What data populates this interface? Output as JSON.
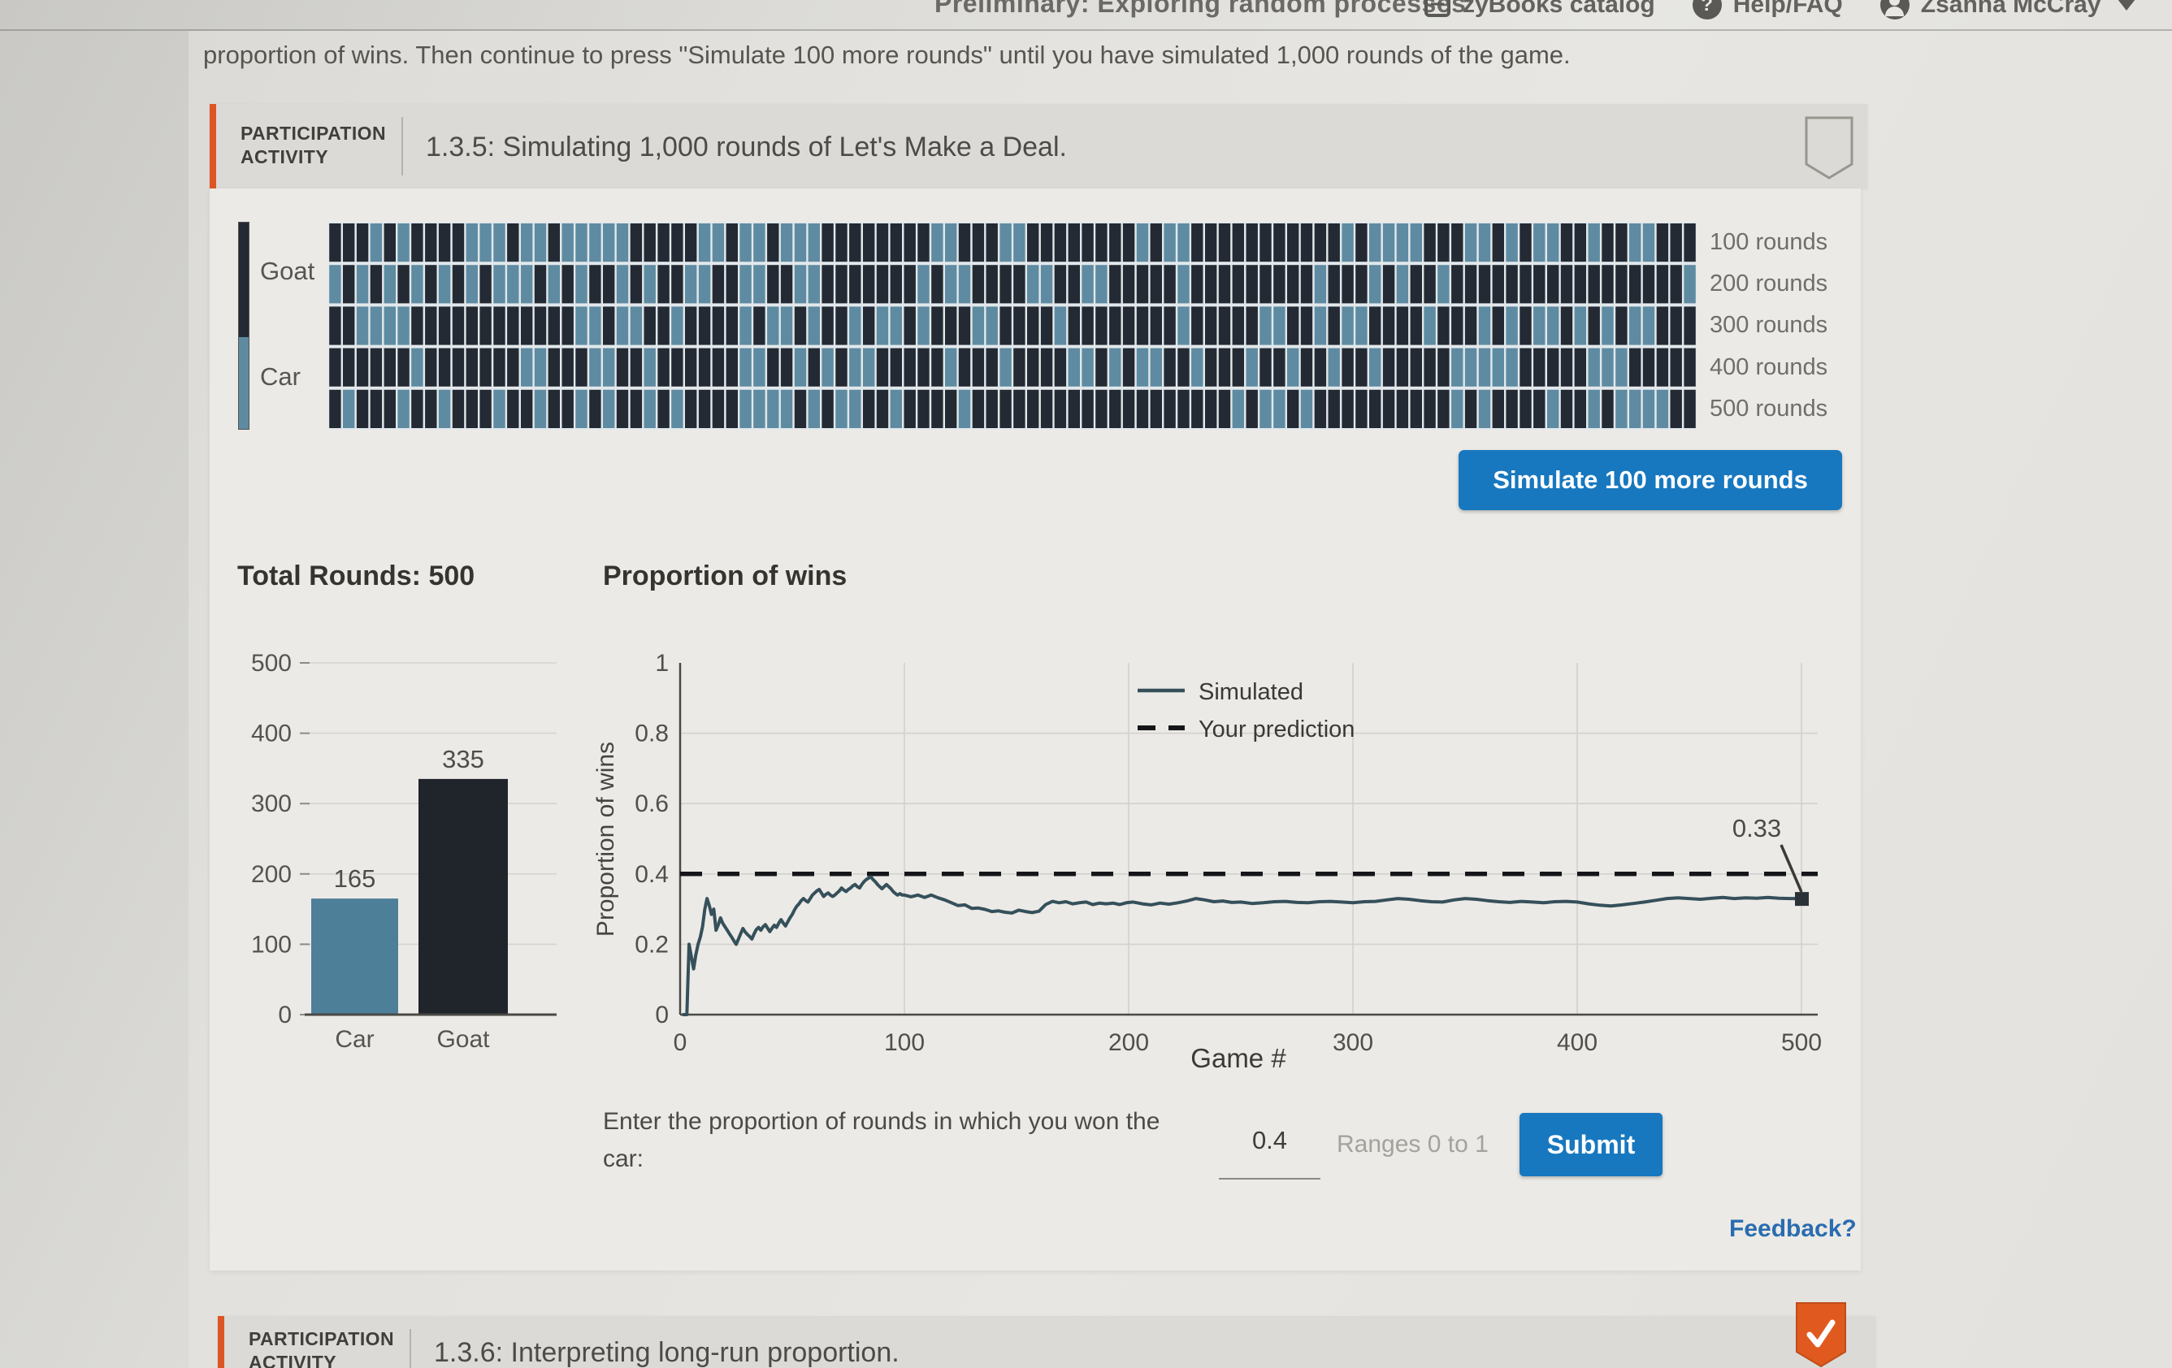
{
  "browser_bar": {
    "page_title": "Preliminary: Exploring random processes",
    "catalog_label": "zyBooks catalog",
    "help_label": "Help/FAQ",
    "user_label": "Zsanna McCray",
    "help_glyph": "?"
  },
  "intro_text": "proportion of wins. Then continue to press \"Simulate 100 more rounds\" until you have simulated 1,000 rounds of the game.",
  "activity": {
    "kicker_line1": "PARTICIPATION",
    "kicker_line2": "ACTIVITY",
    "title": "1.3.5: Simulating 1,000 rounds of Let's Make a Deal."
  },
  "simulation": {
    "legend_goat": "Goat",
    "legend_car": "Car",
    "row_labels": [
      "100 rounds",
      "200 rounds",
      "300 rounds",
      "400 rounds",
      "500 rounds"
    ],
    "button_label": "Simulate 100 more rounds"
  },
  "question": {
    "prompt": "Enter the proportion of rounds in which you won the car:",
    "input_value": "0.4",
    "hint": "Ranges 0 to 1",
    "submit_label": "Submit",
    "feedback_label": "Feedback?"
  },
  "next_activity": {
    "kicker_line1": "PARTICIPATION",
    "kicker_line2": "ACTIVITY",
    "title": "1.3.6: Interpreting long-run proportion."
  },
  "colors": {
    "goat": "#242a33",
    "car": "#5e8ba1",
    "accent_blue": "#1778bf",
    "accent_orange": "#dd5524",
    "line": "#35505a",
    "prediction": "#15161a"
  },
  "chart_data": [
    {
      "type": "heatmap",
      "name": "outcome-raster-strip",
      "rows": 5,
      "cols": 100,
      "row_unit": "100 rounds per row",
      "categories": [
        "Goat",
        "Car"
      ],
      "category_colors": [
        "#242a33",
        "#5e8ba1"
      ],
      "counts": {
        "Goat": 335,
        "Car": 165
      },
      "car_fraction": 0.33,
      "seed": 20
    },
    {
      "type": "bar",
      "title": "Total Rounds: 500",
      "categories": [
        "Car",
        "Goat"
      ],
      "values": [
        165,
        335
      ],
      "colors": [
        "#4e7f98",
        "#20242b"
      ],
      "ylim": [
        0,
        500
      ],
      "yticks": [
        0,
        100,
        200,
        300,
        400,
        500
      ],
      "grid": true
    },
    {
      "type": "line",
      "title": "Proportion of wins",
      "xlabel": "Game #",
      "ylabel": "Proportion of wins",
      "xlim": [
        0,
        500
      ],
      "ylim": [
        0,
        1
      ],
      "xticks": [
        0,
        100,
        200,
        300,
        400,
        500
      ],
      "yticks": [
        0,
        0.2,
        0.4,
        0.6,
        0.8,
        1
      ],
      "grid": true,
      "legend_position": "top-center",
      "legend": [
        {
          "label": "Simulated",
          "style": "solid",
          "color": "#35505a"
        },
        {
          "label": "Your prediction",
          "style": "dashed",
          "color": "#15161a"
        }
      ],
      "prediction_value": 0.4,
      "final_value_label": "0.33",
      "final_value": 0.33,
      "series": [
        {
          "name": "Simulated",
          "color": "#35505a",
          "points": [
            [
              1,
              0
            ],
            [
              2,
              0
            ],
            [
              3,
              0
            ],
            [
              4,
              0.2
            ],
            [
              5,
              0.165
            ],
            [
              6,
              0.13
            ],
            [
              7,
              0.17
            ],
            [
              8,
              0.2
            ],
            [
              9,
              0.22
            ],
            [
              10,
              0.25
            ],
            [
              11,
              0.3
            ],
            [
              12,
              0.33
            ],
            [
              13,
              0.31
            ],
            [
              14,
              0.285
            ],
            [
              15,
              0.3
            ],
            [
              16,
              0.24
            ],
            [
              17,
              0.255
            ],
            [
              18,
              0.275
            ],
            [
              19,
              0.26
            ],
            [
              20,
              0.25
            ],
            [
              21,
              0.24
            ],
            [
              22,
              0.23
            ],
            [
              23,
              0.22
            ],
            [
              24,
              0.21
            ],
            [
              25,
              0.2
            ],
            [
              26,
              0.215
            ],
            [
              27,
              0.23
            ],
            [
              28,
              0.245
            ],
            [
              29,
              0.235
            ],
            [
              30,
              0.228
            ],
            [
              31,
              0.222
            ],
            [
              32,
              0.215
            ],
            [
              33,
              0.23
            ],
            [
              34,
              0.242
            ],
            [
              35,
              0.248
            ],
            [
              36,
              0.24
            ],
            [
              37,
              0.25
            ],
            [
              38,
              0.256
            ],
            [
              39,
              0.246
            ],
            [
              40,
              0.236
            ],
            [
              41,
              0.246
            ],
            [
              42,
              0.254
            ],
            [
              43,
              0.248
            ],
            [
              44,
              0.26
            ],
            [
              45,
              0.27
            ],
            [
              46,
              0.26
            ],
            [
              47,
              0.252
            ],
            [
              48,
              0.264
            ],
            [
              49,
              0.275
            ],
            [
              50,
              0.285
            ],
            [
              51,
              0.298
            ],
            [
              52,
              0.308
            ],
            [
              53,
              0.315
            ],
            [
              54,
              0.324
            ],
            [
              55,
              0.33
            ],
            [
              56,
              0.324
            ],
            [
              57,
              0.32
            ],
            [
              58,
              0.33
            ],
            [
              59,
              0.34
            ],
            [
              60,
              0.346
            ],
            [
              61,
              0.352
            ],
            [
              62,
              0.356
            ],
            [
              63,
              0.346
            ],
            [
              64,
              0.336
            ],
            [
              65,
              0.342
            ],
            [
              66,
              0.346
            ],
            [
              67,
              0.34
            ],
            [
              68,
              0.336
            ],
            [
              69,
              0.34
            ],
            [
              70,
              0.346
            ],
            [
              71,
              0.352
            ],
            [
              72,
              0.36
            ],
            [
              73,
              0.354
            ],
            [
              74,
              0.35
            ],
            [
              75,
              0.356
            ],
            [
              76,
              0.36
            ],
            [
              77,
              0.366
            ],
            [
              78,
              0.37
            ],
            [
              79,
              0.364
            ],
            [
              80,
              0.36
            ],
            [
              81,
              0.37
            ],
            [
              82,
              0.378
            ],
            [
              83,
              0.384
            ],
            [
              84,
              0.388
            ],
            [
              85,
              0.392
            ],
            [
              86,
              0.384
            ],
            [
              87,
              0.378
            ],
            [
              88,
              0.37
            ],
            [
              89,
              0.364
            ],
            [
              90,
              0.358
            ],
            [
              91,
              0.364
            ],
            [
              92,
              0.37
            ],
            [
              93,
              0.364
            ],
            [
              94,
              0.358
            ],
            [
              95,
              0.35
            ],
            [
              96,
              0.344
            ],
            [
              97,
              0.34
            ],
            [
              98,
              0.344
            ],
            [
              99,
              0.34
            ],
            [
              100,
              0.34
            ],
            [
              103,
              0.335
            ],
            [
              106,
              0.34
            ],
            [
              109,
              0.333
            ],
            [
              112,
              0.34
            ],
            [
              115,
              0.332
            ],
            [
              118,
              0.326
            ],
            [
              121,
              0.318
            ],
            [
              124,
              0.31
            ],
            [
              127,
              0.312
            ],
            [
              130,
              0.302
            ],
            [
              133,
              0.303
            ],
            [
              136,
              0.299
            ],
            [
              139,
              0.293
            ],
            [
              142,
              0.295
            ],
            [
              145,
              0.291
            ],
            [
              148,
              0.289
            ],
            [
              151,
              0.297
            ],
            [
              154,
              0.293
            ],
            [
              157,
              0.29
            ],
            [
              160,
              0.294
            ],
            [
              163,
              0.313
            ],
            [
              166,
              0.322
            ],
            [
              169,
              0.318
            ],
            [
              172,
              0.321
            ],
            [
              175,
              0.315
            ],
            [
              178,
              0.318
            ],
            [
              181,
              0.32
            ],
            [
              184,
              0.313
            ],
            [
              187,
              0.317
            ],
            [
              190,
              0.315
            ],
            [
              193,
              0.317
            ],
            [
              196,
              0.313
            ],
            [
              199,
              0.318
            ],
            [
              202,
              0.32
            ],
            [
              206,
              0.315
            ],
            [
              210,
              0.312
            ],
            [
              214,
              0.317
            ],
            [
              218,
              0.314
            ],
            [
              222,
              0.318
            ],
            [
              226,
              0.323
            ],
            [
              230,
              0.33
            ],
            [
              234,
              0.326
            ],
            [
              238,
              0.321
            ],
            [
              242,
              0.323
            ],
            [
              246,
              0.319
            ],
            [
              250,
              0.32
            ],
            [
              255,
              0.316
            ],
            [
              260,
              0.318
            ],
            [
              265,
              0.321
            ],
            [
              270,
              0.322
            ],
            [
              275,
              0.319
            ],
            [
              280,
              0.318
            ],
            [
              285,
              0.321
            ],
            [
              290,
              0.322
            ],
            [
              295,
              0.32
            ],
            [
              300,
              0.318
            ],
            [
              305,
              0.321
            ],
            [
              310,
              0.322
            ],
            [
              315,
              0.326
            ],
            [
              320,
              0.33
            ],
            [
              325,
              0.328
            ],
            [
              330,
              0.324
            ],
            [
              335,
              0.321
            ],
            [
              340,
              0.32
            ],
            [
              345,
              0.326
            ],
            [
              350,
              0.33
            ],
            [
              355,
              0.328
            ],
            [
              360,
              0.324
            ],
            [
              365,
              0.321
            ],
            [
              370,
              0.319
            ],
            [
              375,
              0.322
            ],
            [
              380,
              0.32
            ],
            [
              385,
              0.318
            ],
            [
              390,
              0.321
            ],
            [
              395,
              0.322
            ],
            [
              400,
              0.32
            ],
            [
              405,
              0.315
            ],
            [
              410,
              0.311
            ],
            [
              415,
              0.309
            ],
            [
              420,
              0.312
            ],
            [
              425,
              0.316
            ],
            [
              430,
              0.32
            ],
            [
              435,
              0.325
            ],
            [
              440,
              0.33
            ],
            [
              445,
              0.332
            ],
            [
              450,
              0.33
            ],
            [
              455,
              0.328
            ],
            [
              460,
              0.331
            ],
            [
              465,
              0.333
            ],
            [
              470,
              0.33
            ],
            [
              475,
              0.332
            ],
            [
              480,
              0.331
            ],
            [
              485,
              0.333
            ],
            [
              490,
              0.331
            ],
            [
              495,
              0.33
            ],
            [
              500,
              0.33
            ]
          ]
        }
      ]
    }
  ]
}
